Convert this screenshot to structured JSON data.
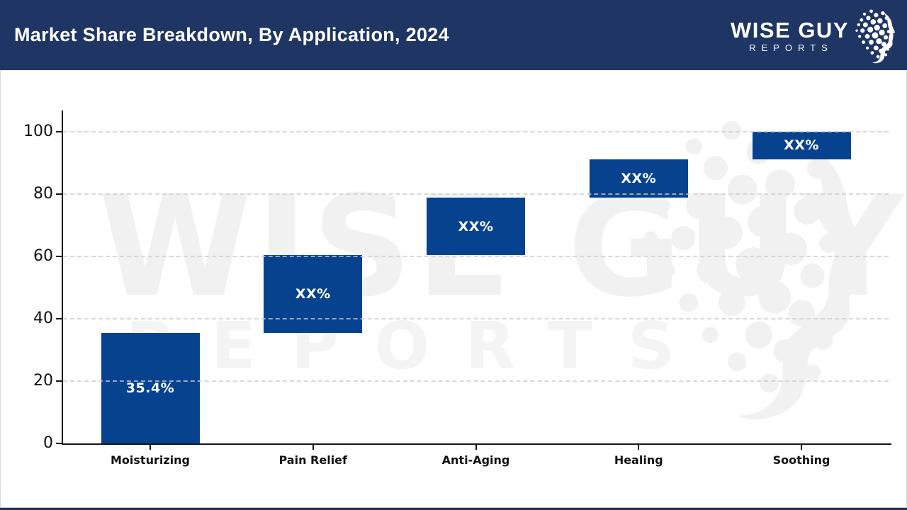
{
  "header": {
    "title": "Market Share Breakdown, By Application, 2024",
    "logo": {
      "line1": "WISE GUY",
      "line2": "REPORTS"
    }
  },
  "watermark": {
    "line1": "WISE GUY",
    "line2": "REPORTS"
  },
  "colors": {
    "header_bg": "#1f3564",
    "bar": "#07428f",
    "bar_label": "#ffffff",
    "grid": "#cbcbcb",
    "axis": "#151515",
    "watermark": "#f1f1f1"
  },
  "chart_data": {
    "type": "bar",
    "subtype": "waterfall",
    "title": "Market Share Breakdown, By Application, 2024",
    "xlabel": "",
    "ylabel": "",
    "categories": [
      "Moisturizing",
      "Pain Relief",
      "Anti-Aging",
      "Healing",
      "Soothing"
    ],
    "segments": [
      {
        "category": "Moisturizing",
        "start": 0,
        "end": 35.4,
        "label": "35.4%"
      },
      {
        "category": "Pain Relief",
        "start": 35.4,
        "end": 60.4,
        "label": "XX%"
      },
      {
        "category": "Anti-Aging",
        "start": 60.4,
        "end": 78.9,
        "label": "XX%"
      },
      {
        "category": "Healing",
        "start": 78.9,
        "end": 91.2,
        "label": "XX%"
      },
      {
        "category": "Soothing",
        "start": 91.2,
        "end": 100,
        "label": "XX%"
      }
    ],
    "yticks": [
      0,
      20,
      40,
      60,
      80,
      100
    ],
    "ylim": [
      0,
      106
    ],
    "grid": "horizontal-dashed",
    "legend": "none",
    "bar_color": "#07428f",
    "label_color": "#ffffff"
  }
}
